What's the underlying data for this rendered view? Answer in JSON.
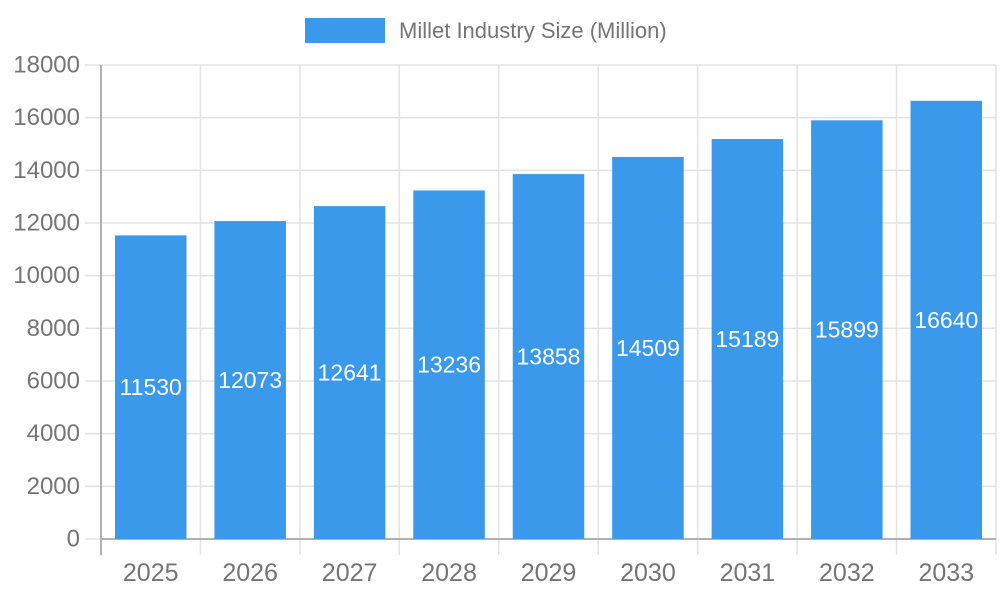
{
  "chart_data": {
    "type": "bar",
    "legend_label": "Millet Industry Size (Million)",
    "legend_position": "top",
    "categories": [
      "2025",
      "2026",
      "2027",
      "2028",
      "2029",
      "2030",
      "2031",
      "2032",
      "2033"
    ],
    "values": [
      11530,
      12073,
      12641,
      13236,
      13858,
      14509,
      15189,
      15899,
      16640
    ],
    "title": "",
    "xlabel": "",
    "ylabel": "",
    "ylim": [
      0,
      18000
    ],
    "ytick_step": 2000,
    "grid": true,
    "colors": {
      "bar": "#3B99EC",
      "bar_label": "#FFFFFF",
      "axis_text": "#757575",
      "grid_line": "#E3E3E3",
      "axis_line": "#B1B1B1",
      "background": "#FFFFFF"
    }
  }
}
